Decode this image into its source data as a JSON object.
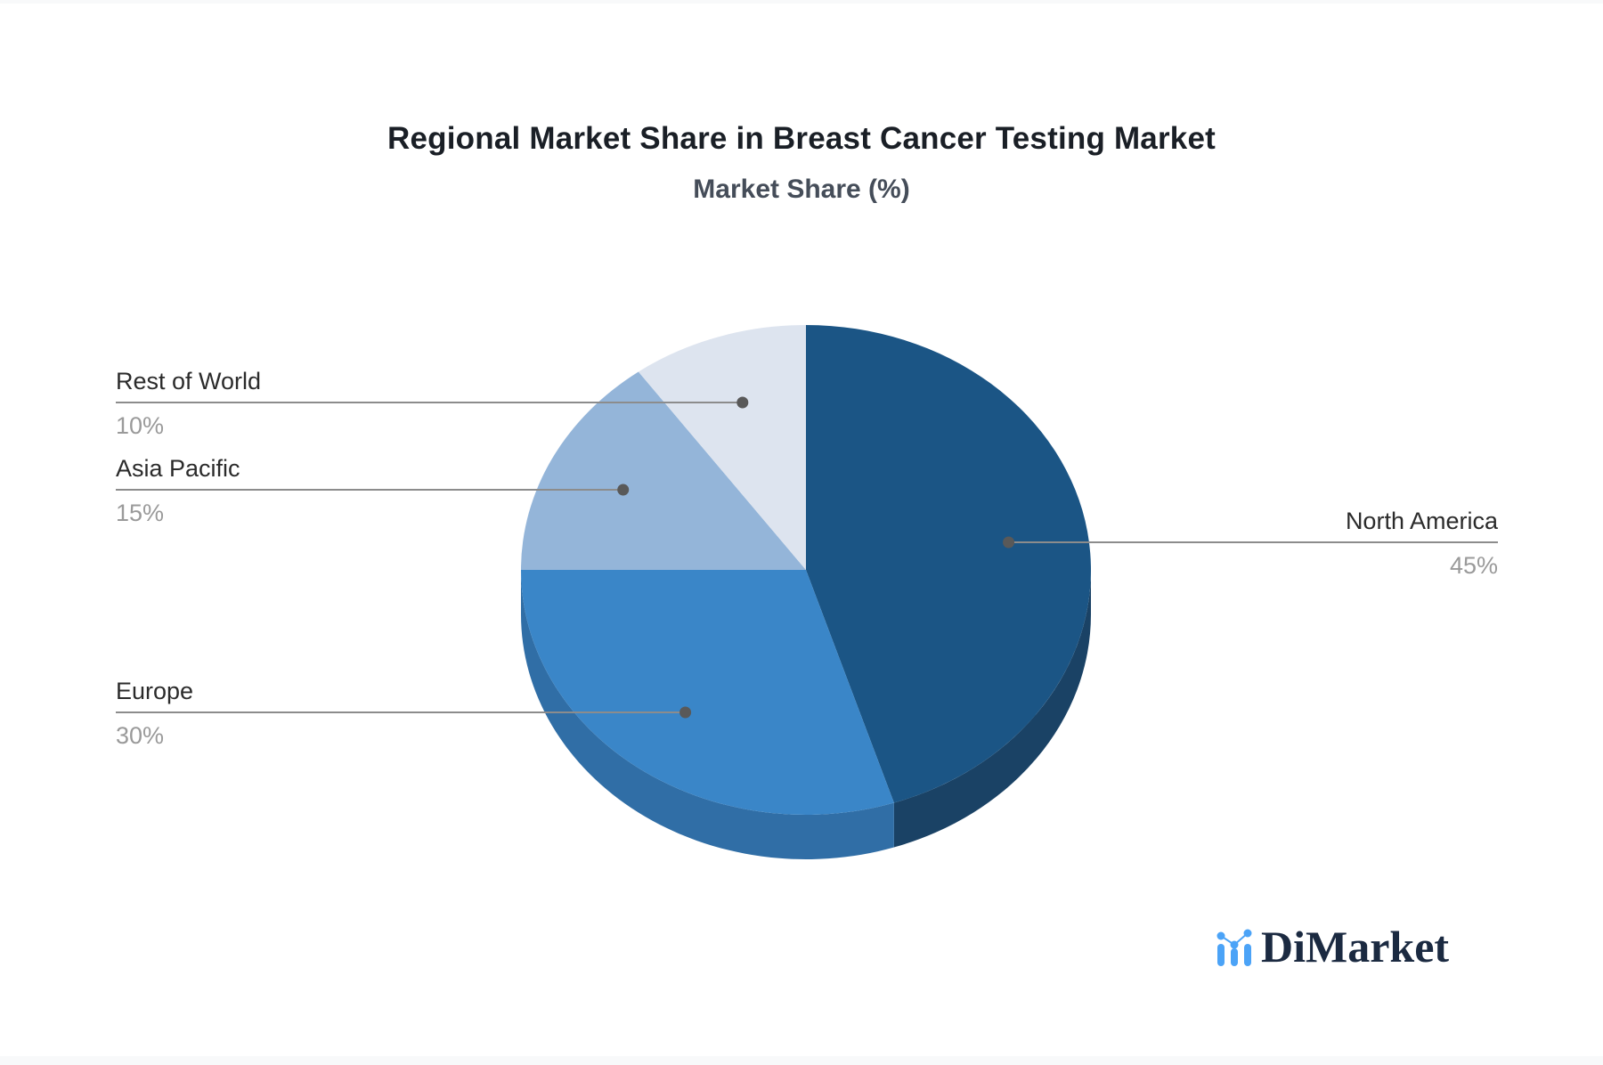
{
  "page": {
    "background": "#f8f9fa",
    "card_background": "#ffffff"
  },
  "chart_data": {
    "type": "pie",
    "title": "Regional Market Share in Breast Cancer Testing Market",
    "subtitle": "Market Share (%)",
    "is_3d": true,
    "legend_position": "callout-labels",
    "categories": [
      "North America",
      "Europe",
      "Asia Pacific",
      "Rest of World"
    ],
    "values": [
      45,
      30,
      15,
      10
    ],
    "slices": [
      {
        "label": "North America",
        "value": 45,
        "display_value": "45%",
        "color": "#1b5585",
        "side_color": "#1a4265",
        "label_side": "right"
      },
      {
        "label": "Europe",
        "value": 30,
        "display_value": "30%",
        "color": "#3a86c8",
        "side_color": "#306ea6",
        "label_side": "left"
      },
      {
        "label": "Asia Pacific",
        "value": 15,
        "display_value": "15%",
        "color": "#94b5d9",
        "side_color": "#7f9fc4",
        "label_side": "left"
      },
      {
        "label": "Rest of World",
        "value": 10,
        "display_value": "10%",
        "color": "#dde4ef",
        "side_color": "#bfcade",
        "label_side": "left"
      }
    ],
    "style": {
      "label_color": "#2b2b2b",
      "value_color": "#9a9a9a",
      "leader_line_color": "#8c8c8c",
      "leader_dot_color": "#595959"
    }
  },
  "branding": {
    "logo_text": "DiMarket",
    "logo_color": "#1b2a41",
    "icon_color": "#4ba3f7"
  }
}
